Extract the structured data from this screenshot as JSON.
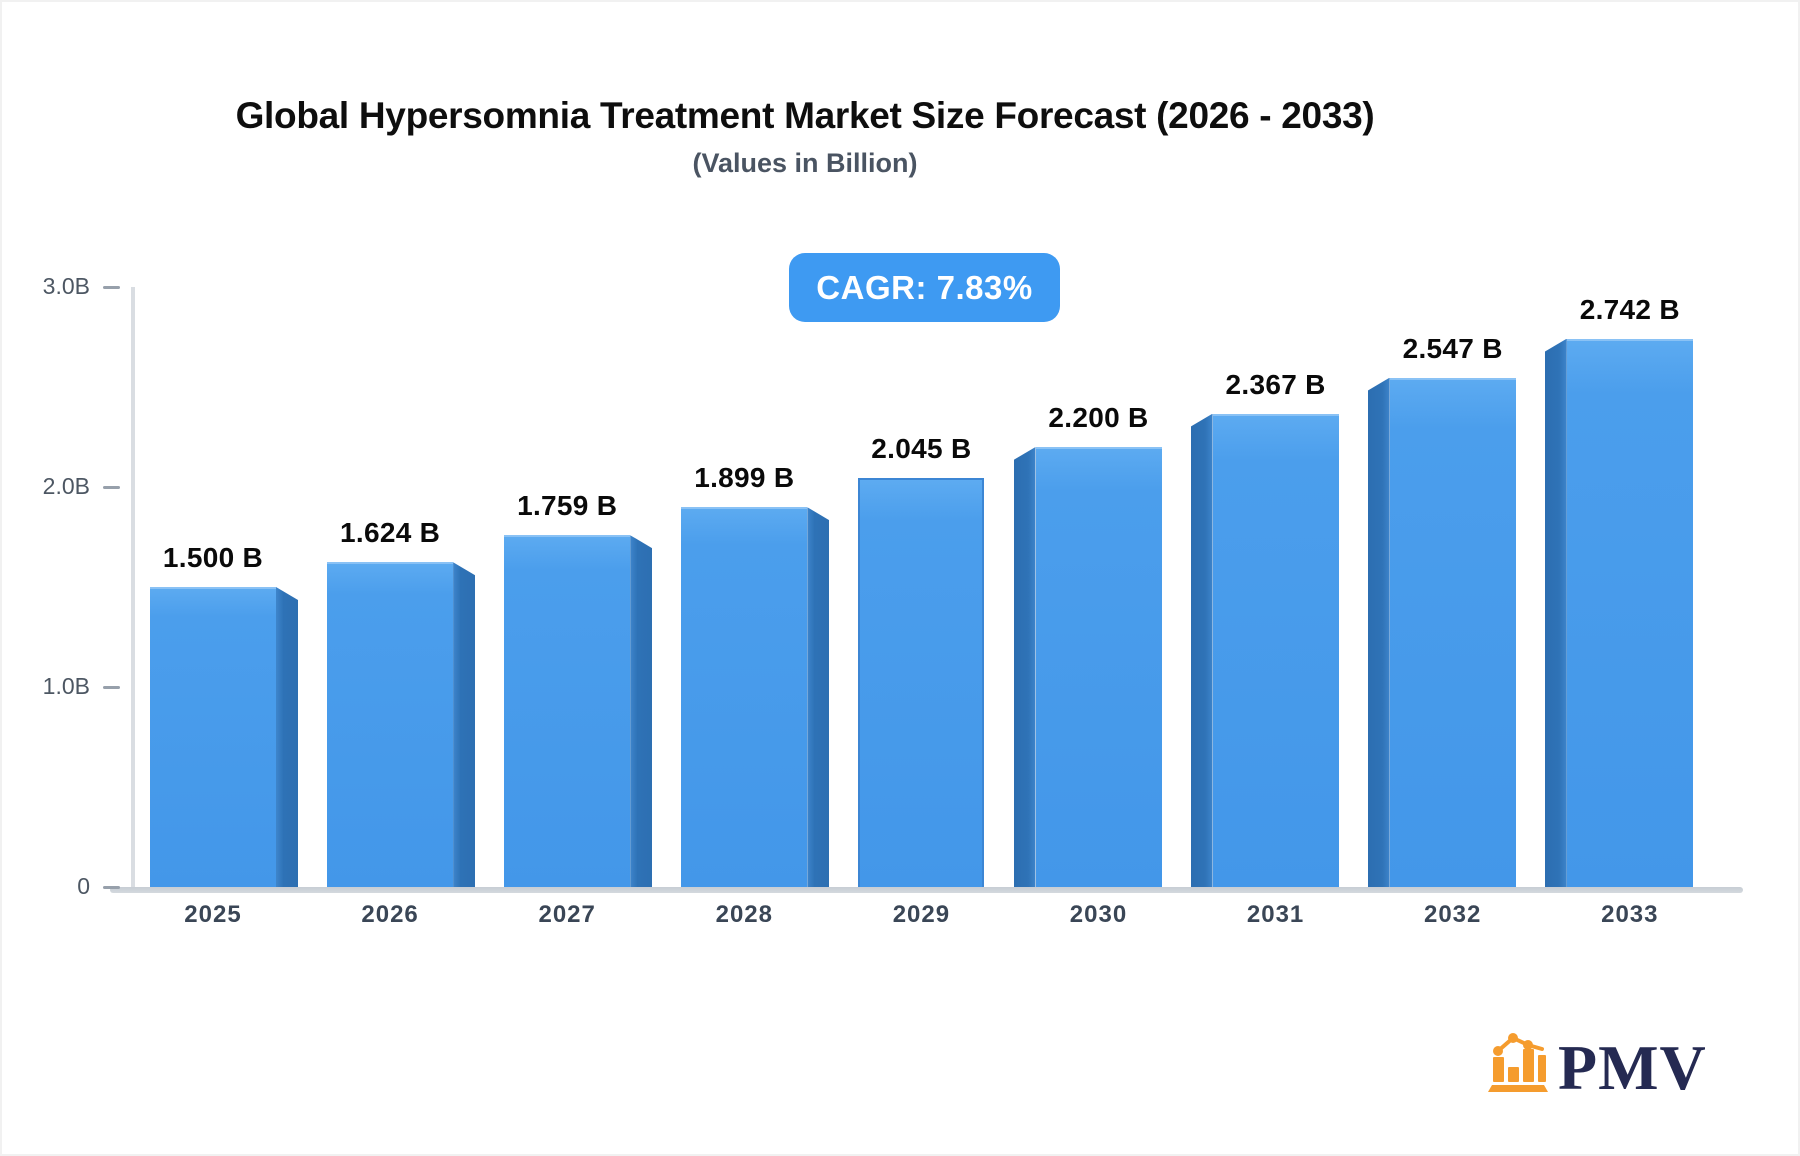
{
  "header": {
    "title": "Global Hypersomnia Treatment Market Size Forecast (2026 - 2033)",
    "subtitle": "(Values in Billion)",
    "cagr_label": "CAGR: 7.83%"
  },
  "colors": {
    "badge_blue": "#3e9af2",
    "bar_front_blue": "#4b9eec",
    "bar_side_blue": "#2e72b6",
    "axis_gray": "#d9dde2",
    "axis_text": "#4d5763",
    "year_text": "#3a4656",
    "value_text": "#0a0a0a",
    "logo_orange": "#f59c2e",
    "logo_navy": "#252a52"
  },
  "brand": {
    "name": "PMV"
  },
  "chart_data": {
    "type": "bar",
    "title": "Global Hypersomnia Treatment Market Size Forecast (2026 - 2033)",
    "subtitle": "(Values in Billion)",
    "annotation": "CAGR: 7.83%",
    "categories": [
      "2025",
      "2026",
      "2027",
      "2028",
      "2029",
      "2030",
      "2031",
      "2032",
      "2033"
    ],
    "values": [
      1.5,
      1.624,
      1.759,
      1.899,
      2.045,
      2.2,
      2.367,
      2.547,
      2.742
    ],
    "value_labels": [
      "1.500 B",
      "1.624 B",
      "1.759 B",
      "1.899 B",
      "2.045 B",
      "2.200 B",
      "2.367 B",
      "2.547 B",
      "2.742 B"
    ],
    "xlabel": "",
    "ylabel": "",
    "ylim": [
      0,
      3.0
    ],
    "y_ticks": [
      {
        "label": "3.0B",
        "value": 3.0
      },
      {
        "label": "2.0B",
        "value": 2.0
      },
      {
        "label": "1.0B",
        "value": 1.0
      },
      {
        "label": "0",
        "value": 0.0
      }
    ],
    "grid": false,
    "legend": false,
    "style": "pseudo-3d bars, perspective vanishing toward center bar"
  }
}
